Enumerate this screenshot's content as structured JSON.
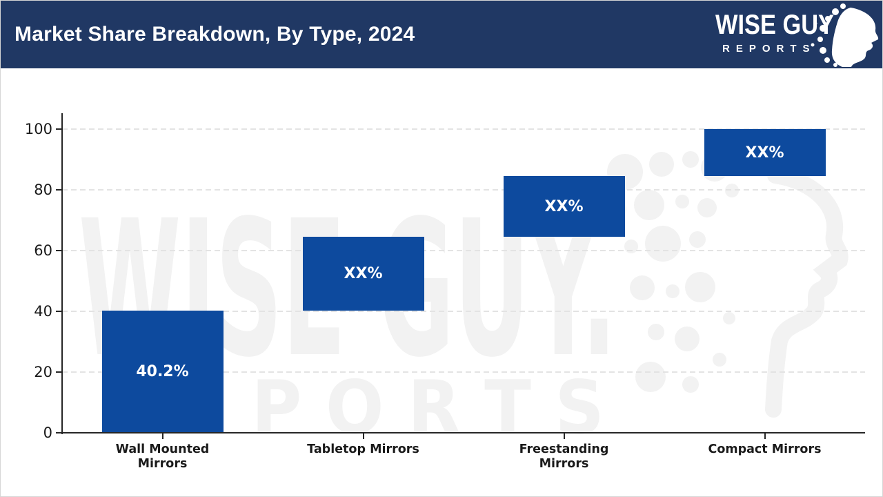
{
  "colors": {
    "header_bg": "#203864",
    "title_text": "#ffffff",
    "bar": "#0d4a9e",
    "axis": "#262626",
    "grid": "#e3e3e3",
    "text": "#1a1a1a",
    "watermark": "#f2f2f2",
    "border": "#d6d6d6"
  },
  "header": {
    "title": "Market Share Breakdown, By Type, 2024",
    "logo": {
      "line1": "WISE GUY",
      "line2": "REPORTS"
    }
  },
  "watermark": {
    "line1": "WISE GUY.",
    "line2": "R E P O R T S"
  },
  "chart_data": {
    "type": "bar",
    "subtype": "floating-waterfall",
    "title": "Market Share Breakdown, By Type, 2024",
    "categories": [
      "Wall Mounted\nMirrors",
      "Tabletop Mirrors",
      "Freestanding\nMirrors",
      "Compact Mirrors"
    ],
    "segments": [
      {
        "category": "Wall Mounted Mirrors",
        "start": 0,
        "end": 40.2,
        "label": "40.2%"
      },
      {
        "category": "Tabletop Mirrors",
        "start": 40.2,
        "end": 64.5,
        "label": "XX%"
      },
      {
        "category": "Freestanding Mirrors",
        "start": 64.5,
        "end": 84.5,
        "label": "XX%"
      },
      {
        "category": "Compact Mirrors",
        "start": 84.5,
        "end": 100,
        "label": "XX%"
      }
    ],
    "ylim": [
      0,
      100
    ],
    "yticks": [
      0,
      20,
      40,
      60,
      80,
      100
    ],
    "xlabel": "",
    "ylabel": "",
    "grid": "horizontal-dashed",
    "legend": null,
    "bar_color": "#0d4a9e"
  }
}
